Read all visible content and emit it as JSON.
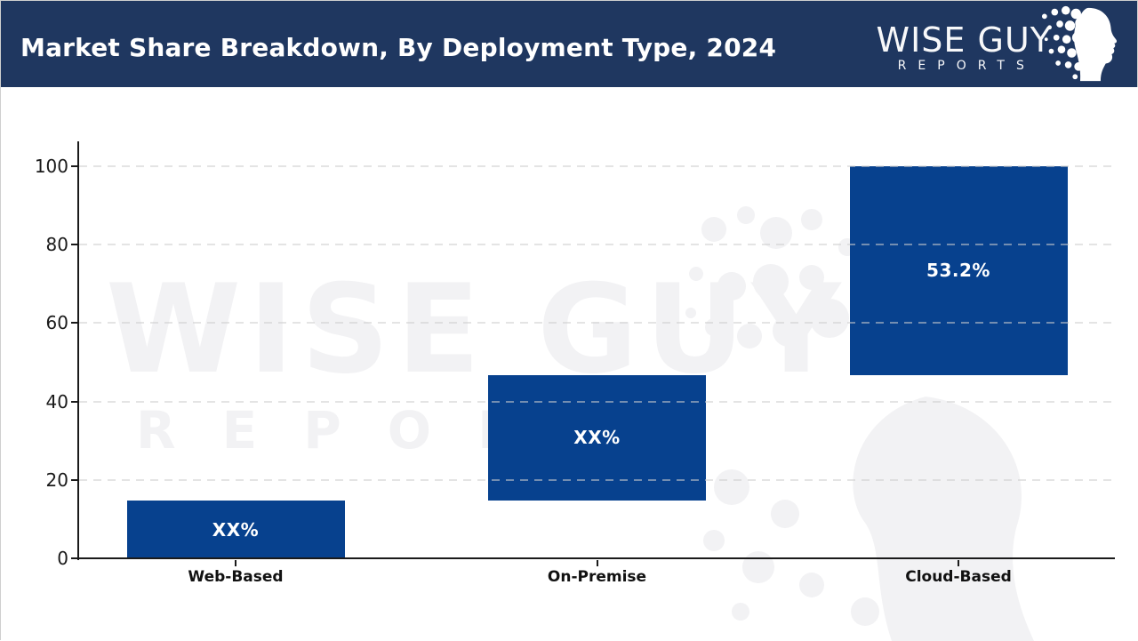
{
  "header": {
    "title": "Market Share Breakdown, By Deployment Type, 2024",
    "logo": {
      "line1": "WISE GUY",
      "line2": "REPORTS"
    }
  },
  "watermark": {
    "line1": "WISE GUY",
    "line2": "REPORTS"
  },
  "colors": {
    "header_bg": "#1F3760",
    "bar_blue": "#07418E",
    "watermark_gray": "#F2F2F4",
    "axis_black": "#1A1A1A",
    "grid_gray": "#CECECE"
  },
  "chart_data": {
    "type": "bar",
    "variant": "floating-breakdown-waterfall",
    "title": "Market Share Breakdown, By Deployment Type, 2024",
    "categories": [
      "Web-Based",
      "On-Premise",
      "Cloud-Based"
    ],
    "bars": [
      {
        "category": "Web-Based",
        "start": 0,
        "end": 14.7,
        "value": 14.7,
        "label": "XX%"
      },
      {
        "category": "On-Premise",
        "start": 14.7,
        "end": 46.8,
        "value": 32.1,
        "label": "XX%"
      },
      {
        "category": "Cloud-Based",
        "start": 46.8,
        "end": 100,
        "value": 53.2,
        "label": "53.2%"
      }
    ],
    "xlabel": "",
    "ylabel": "",
    "yticks": [
      0,
      20,
      40,
      60,
      80,
      100
    ],
    "ylim": [
      0,
      106
    ],
    "grid": "dashed-horizontal",
    "legend": "none",
    "bar_color": "#07418E",
    "bar_label_color": "#FFFFFF"
  }
}
